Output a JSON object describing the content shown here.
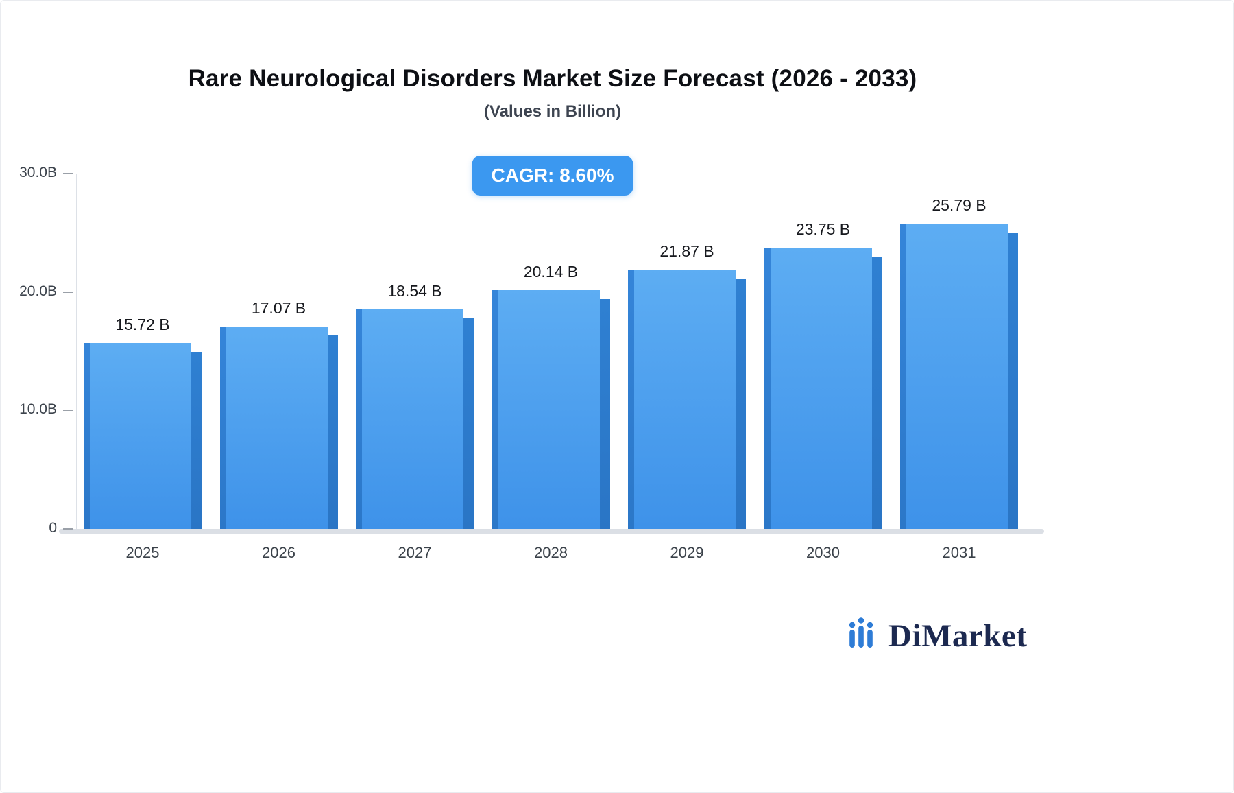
{
  "header": {
    "title": "Rare Neurological Disorders Market Size Forecast (2026 - 2033)",
    "subtitle": "(Values in Billion)"
  },
  "badge": {
    "label": "CAGR: 8.60%",
    "background": "#3b98f0",
    "text_color": "#ffffff"
  },
  "brand": {
    "name": "DiMarket",
    "icon": "bar-chart-logo-icon",
    "icon_color": "#2e7cd6",
    "text_color": "#1c2950"
  },
  "chart_data": {
    "type": "bar",
    "title": "Rare Neurological Disorders Market Size Forecast (2026 - 2033)",
    "subtitle": "(Values in Billion)",
    "categories": [
      "2025",
      "2026",
      "2027",
      "2028",
      "2029",
      "2030",
      "2031"
    ],
    "values": [
      15.72,
      17.07,
      18.54,
      20.14,
      21.87,
      23.75,
      25.79
    ],
    "value_labels": [
      "15.72 B",
      "17.07 B",
      "18.54 B",
      "20.14 B",
      "21.87 B",
      "23.75 B",
      "25.79 B"
    ],
    "unit": "Billion",
    "xlabel": "",
    "ylabel": "",
    "ylim": [
      0,
      30
    ],
    "y_ticks": [
      {
        "v": 0,
        "label": "0"
      },
      {
        "v": 10,
        "label": "10.0B"
      },
      {
        "v": 20,
        "label": "20.0B"
      },
      {
        "v": 30,
        "label": "30.0B"
      }
    ],
    "grid": false,
    "legend": false,
    "bar_color_top": "#5dadf3",
    "bar_color_bottom": "#3e92e9",
    "bar_side_color": "#2b77c8"
  }
}
